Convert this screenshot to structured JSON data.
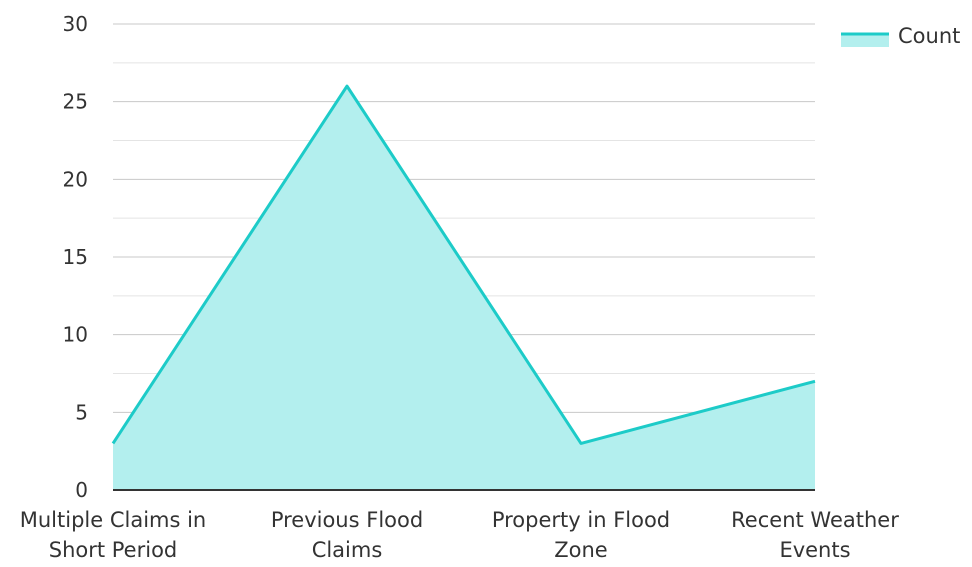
{
  "chart_data": {
    "type": "area",
    "categories": [
      [
        "Multiple Claims in",
        "Short Period"
      ],
      [
        "Previous Flood",
        "Claims"
      ],
      [
        "Property in Flood",
        "Zone"
      ],
      [
        "Recent Weather",
        "Events"
      ]
    ],
    "series": [
      {
        "name": "Count",
        "values": [
          3,
          26,
          3,
          7
        ]
      }
    ],
    "ylim": [
      0,
      30
    ],
    "yticks": [
      0,
      5,
      10,
      15,
      20,
      25,
      30
    ],
    "minor_grid_step": 2.5,
    "grid": true,
    "legend_position": "top-right",
    "colors": {
      "line": "#1dcbc8",
      "fill": "#b3efee",
      "grid": "#cccccc",
      "axis": "#333333"
    }
  }
}
